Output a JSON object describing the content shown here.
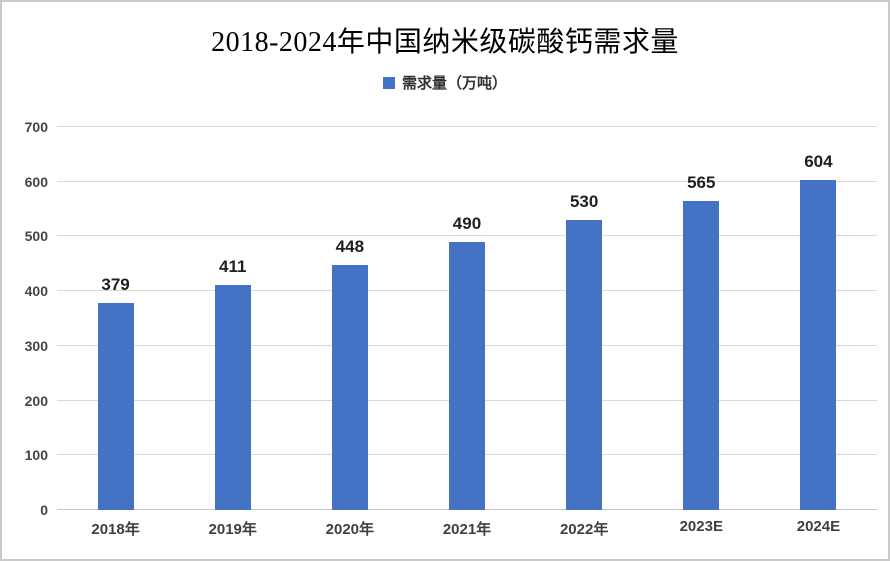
{
  "chart": {
    "title": "2018-2024年中国纳米级碳酸钙需求量",
    "legend": {
      "label": "需求量（万吨）",
      "swatch_icon": "blue-square-icon",
      "swatch_color": "#4472c4"
    }
  },
  "chart_data": {
    "type": "bar",
    "title": "2018-2024年中国纳米级碳酸钙需求量",
    "categories": [
      "2018年",
      "2019年",
      "2020年",
      "2021年",
      "2022年",
      "2023E",
      "2024E"
    ],
    "series": [
      {
        "name": "需求量（万吨）",
        "values": [
          379,
          411,
          448,
          490,
          530,
          565,
          604
        ]
      }
    ],
    "data_labels": [
      379,
      411,
      448,
      490,
      530,
      565,
      604
    ],
    "xlabel": "",
    "ylabel": "",
    "ylim": [
      0,
      700
    ],
    "yticks": [
      0,
      100,
      200,
      300,
      400,
      500,
      600,
      700
    ],
    "grid": true,
    "legend_position": "top",
    "bar_color": "#4472c4",
    "gridline_color": "#d9d9d9",
    "value_label_color": "#1f1f1f",
    "tick_label_color": "#3f3f3f"
  }
}
